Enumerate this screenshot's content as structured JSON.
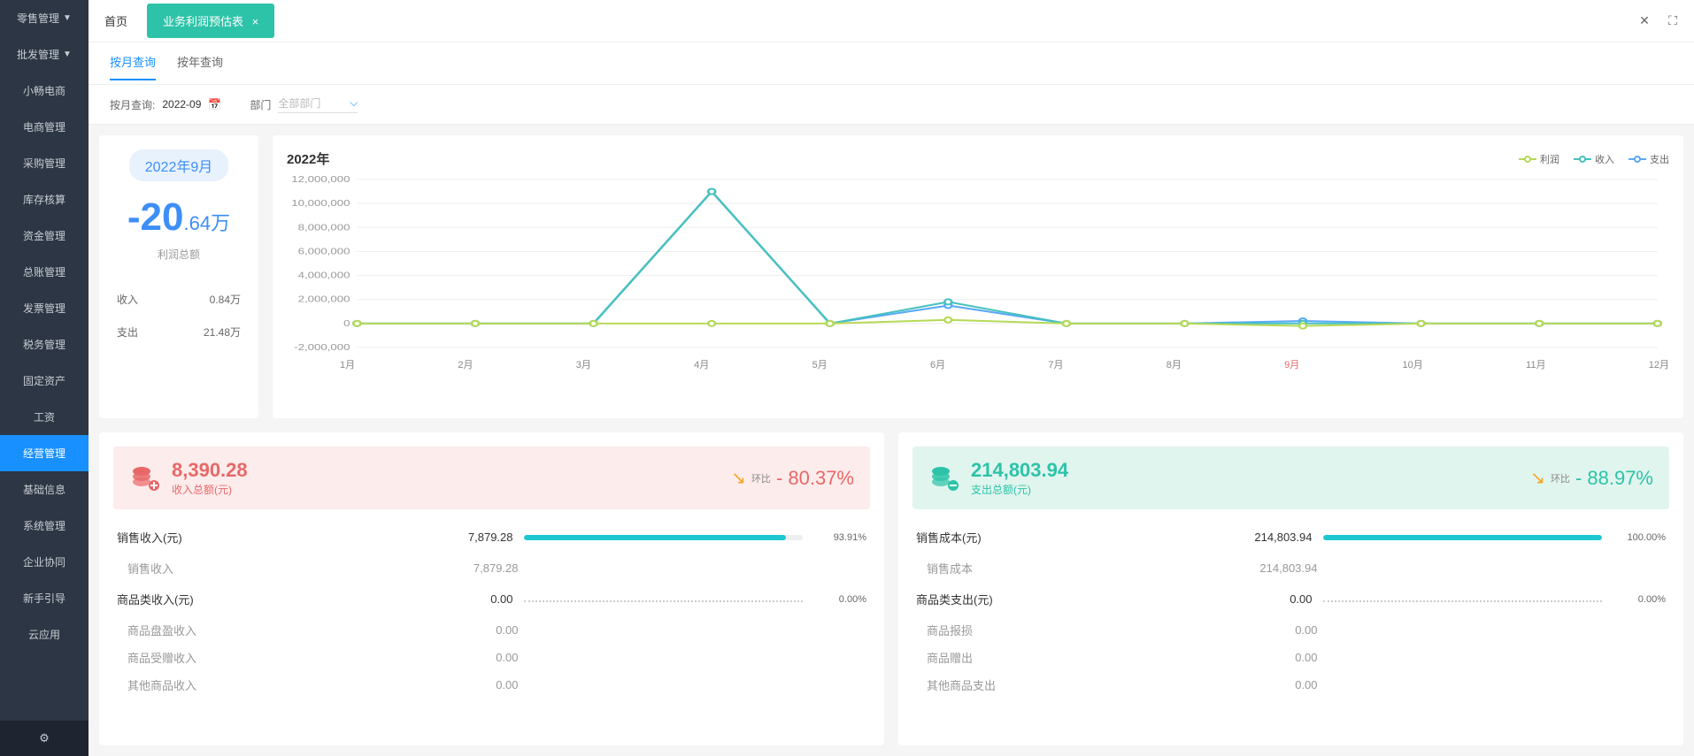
{
  "sidebar": {
    "items": [
      {
        "label": "零售管理",
        "caret": true
      },
      {
        "label": "批发管理",
        "caret": true
      },
      {
        "label": "小畅电商"
      },
      {
        "label": "电商管理"
      },
      {
        "label": "采购管理"
      },
      {
        "label": "库存核算"
      },
      {
        "label": "资金管理"
      },
      {
        "label": "总账管理"
      },
      {
        "label": "发票管理"
      },
      {
        "label": "税务管理"
      },
      {
        "label": "固定资产"
      },
      {
        "label": "工资"
      },
      {
        "label": "经营管理",
        "active": true
      },
      {
        "label": "基础信息"
      },
      {
        "label": "系统管理"
      },
      {
        "label": "企业协同"
      },
      {
        "label": "新手引导"
      },
      {
        "label": "云应用"
      }
    ]
  },
  "tabs": {
    "home": "首页",
    "active": "业务利润预估表"
  },
  "subtabs": {
    "monthly": "按月查询",
    "yearly": "按年查询"
  },
  "filters": {
    "month_label": "按月查询:",
    "month_value": "2022-09",
    "dept_label": "部门",
    "dept_placeholder": "全部部门"
  },
  "kpi": {
    "period": "2022年9月",
    "value_big": "-20",
    "value_small": ".64万",
    "label": "利润总额",
    "income_label": "收入",
    "income_value": "0.84万",
    "expense_label": "支出",
    "expense_value": "21.48万"
  },
  "chart": {
    "title": "2022年",
    "legend": {
      "profit": "利润",
      "income": "收入",
      "expense": "支出"
    },
    "colors": {
      "profit": "#b6d957",
      "income": "#47c1bf",
      "expense": "#5aa9f7"
    },
    "ylim": [
      -2000000,
      12000000
    ],
    "yticks": [
      "12,000,000",
      "10,000,000",
      "8,000,000",
      "6,000,000",
      "4,000,000",
      "2,000,000",
      "0",
      "-2,000,000"
    ],
    "months": [
      "1月",
      "2月",
      "3月",
      "4月",
      "5月",
      "6月",
      "7月",
      "8月",
      "9月",
      "10月",
      "11月",
      "12月"
    ],
    "highlight_month_index": 8,
    "grid_color": "#eeeeee",
    "series": {
      "income": [
        0,
        0,
        0,
        11000000,
        0,
        1800000,
        0,
        0,
        8390,
        0,
        0,
        0
      ],
      "expense": [
        0,
        0,
        0,
        11000000,
        0,
        1500000,
        0,
        0,
        214803,
        0,
        0,
        0
      ],
      "profit": [
        0,
        0,
        0,
        0,
        0,
        300000,
        0,
        0,
        -206413,
        0,
        0,
        0
      ]
    }
  },
  "income_panel": {
    "banner_icon_color": "#e86868",
    "amount": "8,390.28",
    "sub": "收入总额(元)",
    "trend_label": "环比",
    "trend_pct": "- 80.37%",
    "rows": [
      {
        "label": "销售收入(元)",
        "value": "7,879.28",
        "bar_pct": 93.91,
        "pct_text": "93.91%"
      },
      {
        "label": "销售收入",
        "value": "7,879.28",
        "sub": true
      },
      {
        "label": "商品类收入(元)",
        "value": "0.00",
        "bar_pct": 0,
        "pct_text": "0.00%"
      },
      {
        "label": "商品盘盈收入",
        "value": "0.00",
        "sub": true
      },
      {
        "label": "商品受赠收入",
        "value": "0.00",
        "sub": true
      },
      {
        "label": "其他商品收入",
        "value": "0.00",
        "sub": true
      }
    ]
  },
  "expense_panel": {
    "banner_icon_color": "#2dc3a8",
    "amount": "214,803.94",
    "sub": "支出总额(元)",
    "trend_label": "环比",
    "trend_pct": "- 88.97%",
    "rows": [
      {
        "label": "销售成本(元)",
        "value": "214,803.94",
        "bar_pct": 100,
        "pct_text": "100.00%"
      },
      {
        "label": "销售成本",
        "value": "214,803.94",
        "sub": true
      },
      {
        "label": "商品类支出(元)",
        "value": "0.00",
        "bar_pct": 0,
        "pct_text": "0.00%"
      },
      {
        "label": "商品报损",
        "value": "0.00",
        "sub": true
      },
      {
        "label": "商品赠出",
        "value": "0.00",
        "sub": true
      },
      {
        "label": "其他商品支出",
        "value": "0.00",
        "sub": true
      }
    ]
  }
}
